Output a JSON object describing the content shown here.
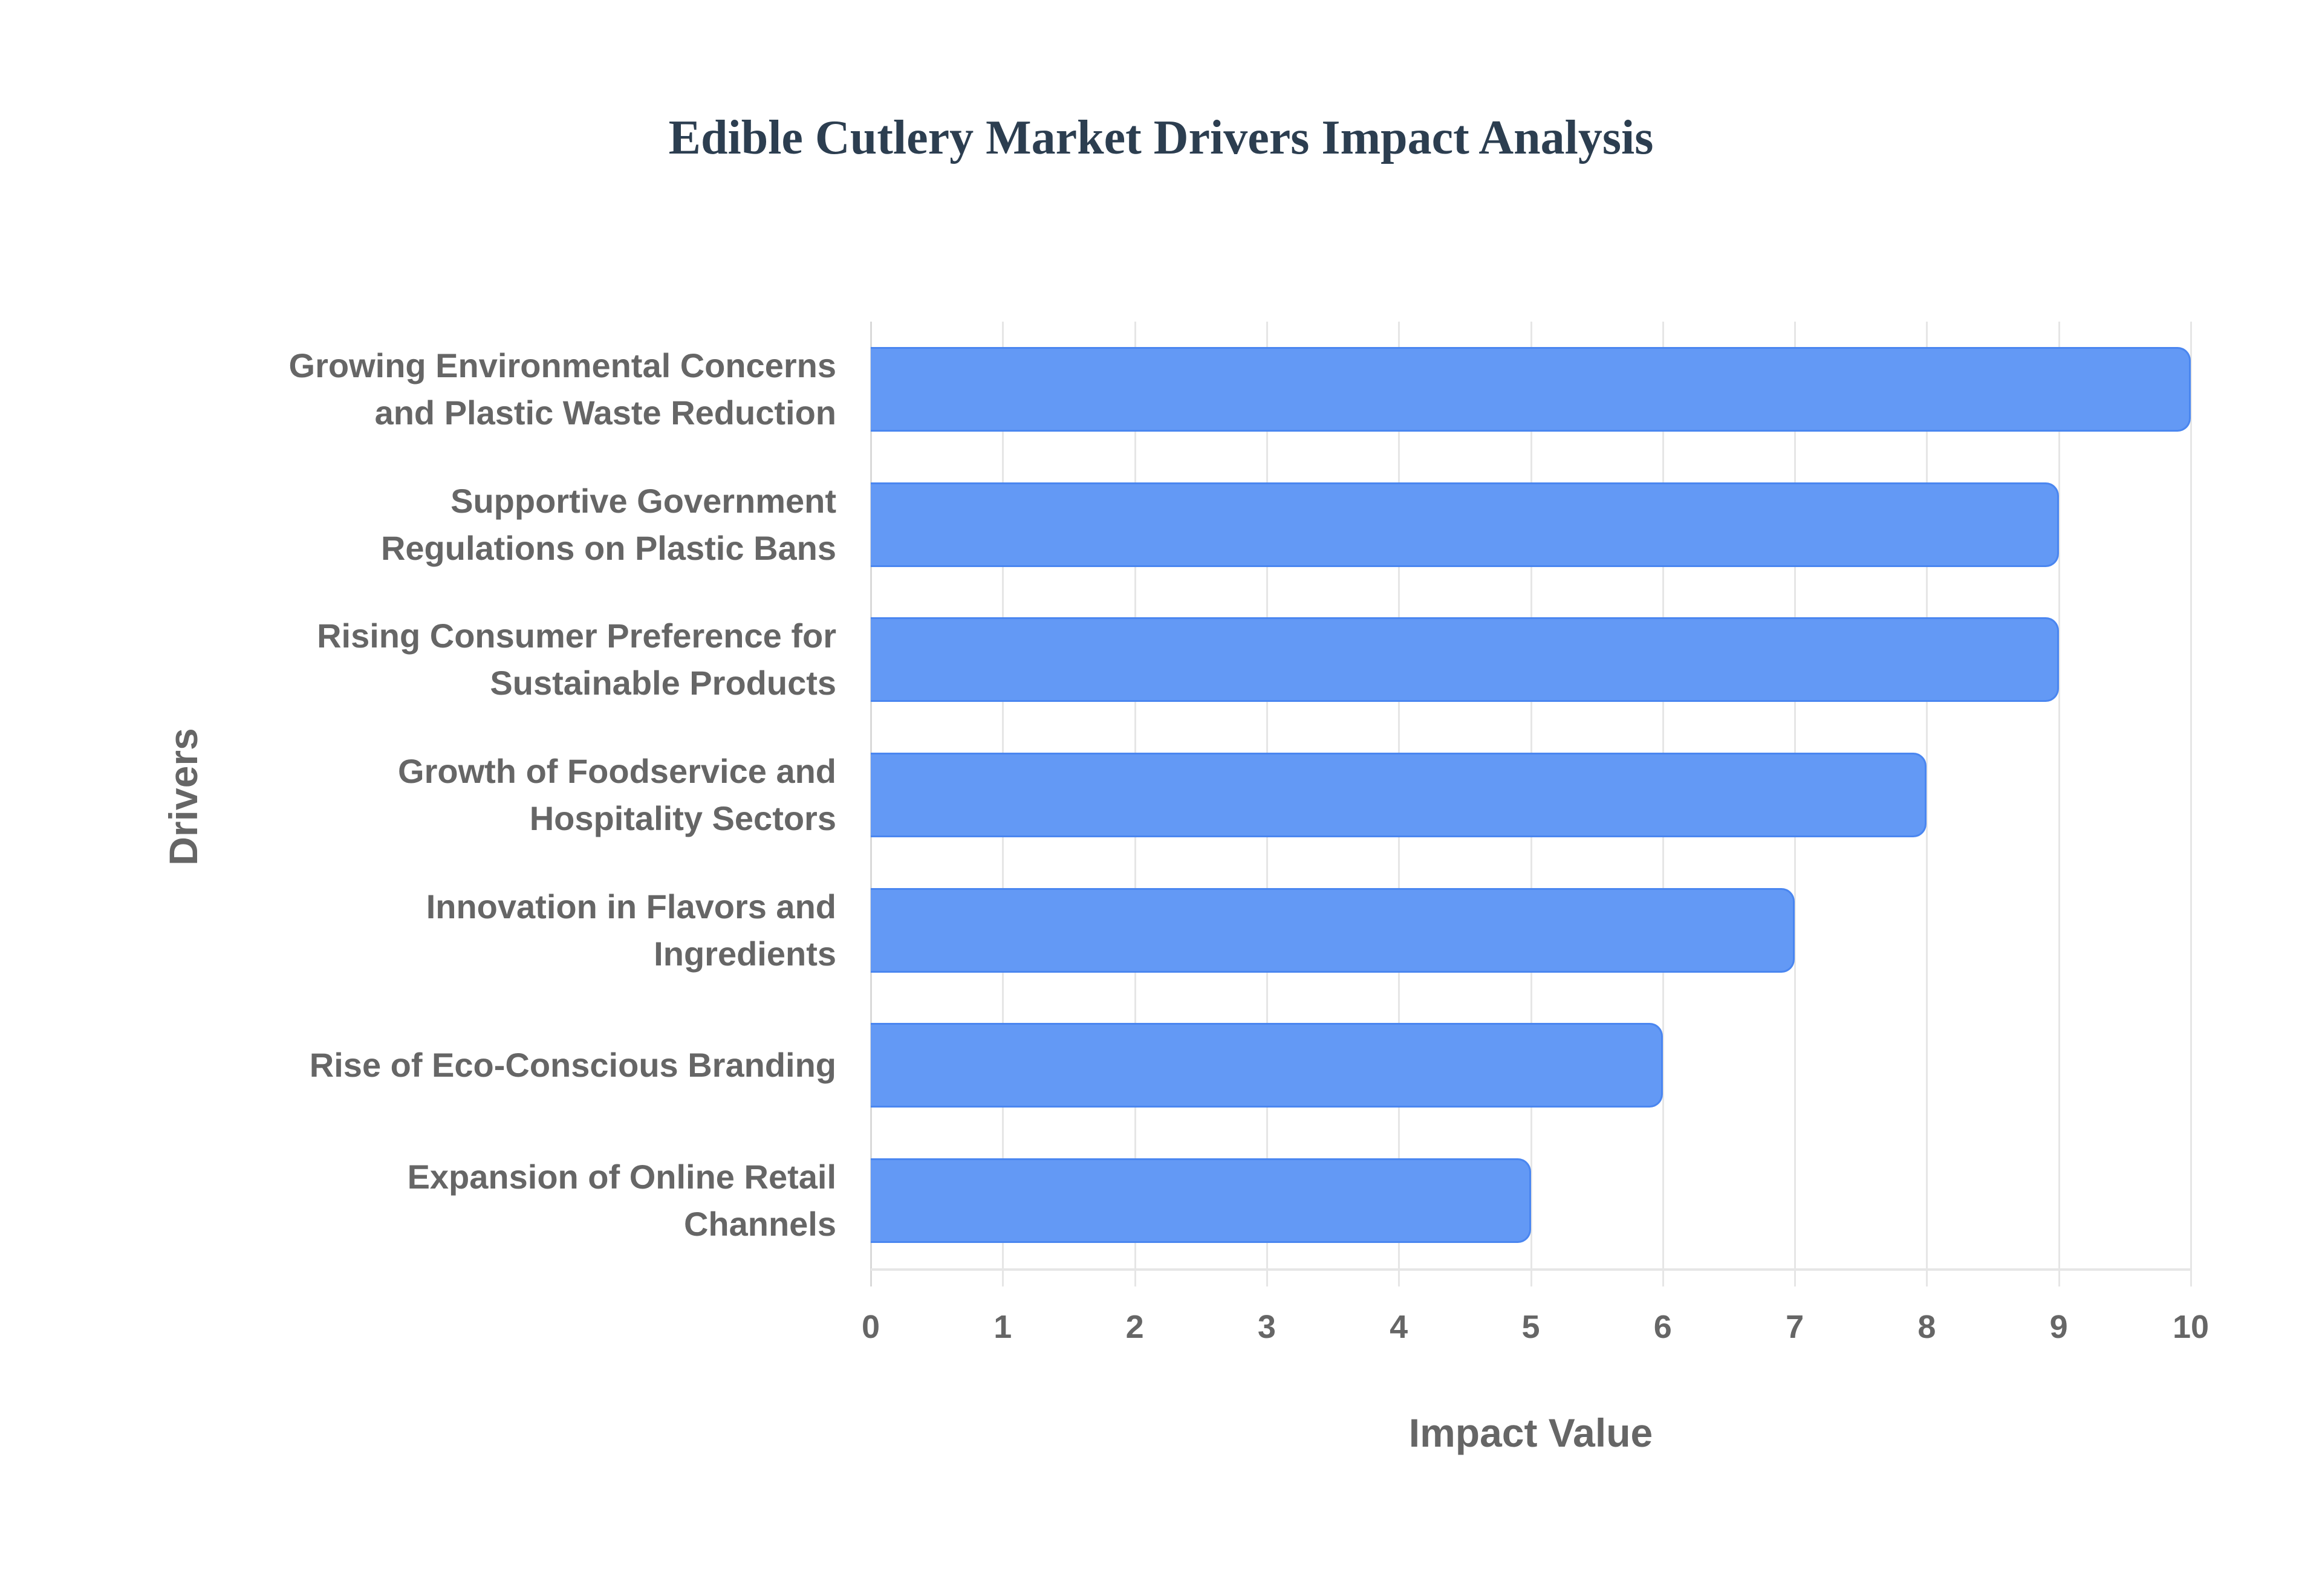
{
  "chart_data": {
    "type": "bar",
    "orientation": "horizontal",
    "title": "Edible Cutlery Market Drivers Impact Analysis",
    "xlabel": "Impact Value",
    "ylabel": "Drivers",
    "xlim": [
      0,
      10
    ],
    "xticks": [
      "0",
      "1",
      "2",
      "3",
      "4",
      "5",
      "6",
      "7",
      "8",
      "9",
      "10"
    ],
    "grid": true,
    "legend": null,
    "bar_color": "#6399f5",
    "bar_border_color": "#4a86f0",
    "categories": [
      [
        "Growing Environmental Concerns",
        "and Plastic Waste Reduction"
      ],
      [
        "Supportive Government",
        "Regulations on Plastic Bans"
      ],
      [
        "Rising Consumer Preference for",
        "Sustainable Products"
      ],
      [
        "Growth of Foodservice and",
        "Hospitality Sectors"
      ],
      [
        "Innovation in Flavors and",
        "Ingredients"
      ],
      [
        "Rise of Eco-Conscious Branding"
      ],
      [
        "Expansion of Online Retail",
        "Channels"
      ]
    ],
    "values": [
      10,
      9,
      9,
      8,
      7,
      6,
      5
    ]
  }
}
